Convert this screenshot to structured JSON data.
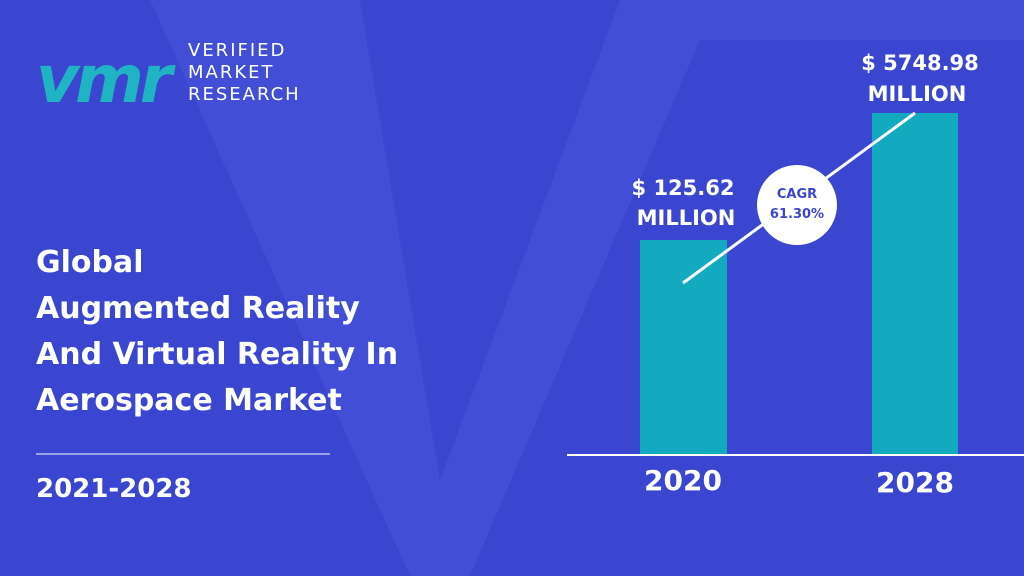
{
  "logo": {
    "mark": "vmr",
    "lines": [
      "VERIFIED",
      "MARKET",
      "RESEARCH"
    ]
  },
  "title": {
    "lines": [
      "Global",
      "Augmented Reality",
      "And Virtual Reality In",
      "Aerospace Market"
    ]
  },
  "period": "2021-2028",
  "bars": [
    {
      "year": "2020",
      "label_lines": [
        "$ 125.62",
        "MILLION"
      ]
    },
    {
      "year": "2028",
      "label_lines": [
        "$ 5748.98",
        "MILLION"
      ]
    }
  ],
  "cagr": {
    "label": "CAGR",
    "value": "61.30%"
  }
}
